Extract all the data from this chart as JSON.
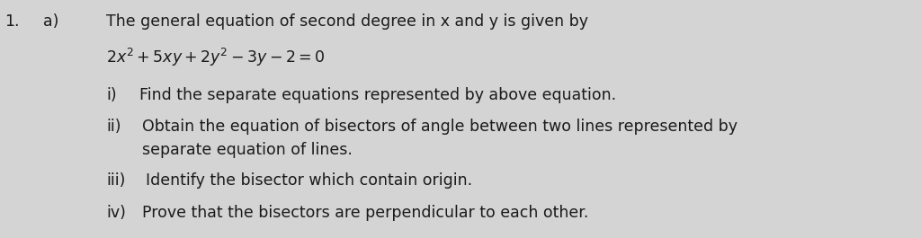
{
  "background_color": "#d4d4d4",
  "text_color": "#1a1a1a",
  "number": "1.",
  "part": "a)",
  "line1": "The general equation of second degree in x and y is given by",
  "equation": "$2x^2 + 5xy + 2y^2 - 3y - 2 = 0$",
  "sub_i_label": "i)",
  "sub_i_text": "Find the separate equations represented by above equation.",
  "sub_ii_label": "ii)",
  "sub_ii_text1": "Obtain the equation of bisectors of angle between two lines represented by",
  "sub_ii_text2": "separate equation of lines.",
  "sub_iii_label": "iii)",
  "sub_iii_text": "Identify the bisector which contain origin.",
  "sub_iv_label": "iv)",
  "sub_iv_text": "Prove that the bisectors are perpendicular to each other.",
  "fig_width": 10.24,
  "fig_height": 2.65,
  "dpi": 100
}
